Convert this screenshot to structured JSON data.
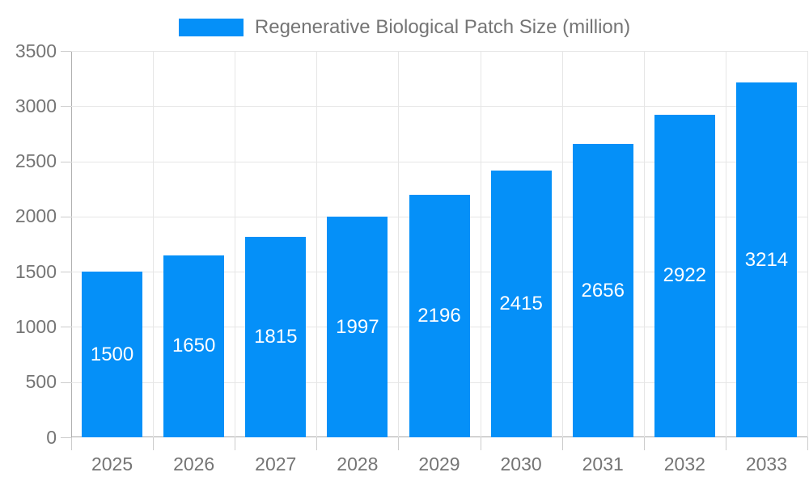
{
  "legend": {
    "label": "Regenerative Biological Patch Size (million)"
  },
  "chart_data": {
    "type": "bar",
    "title": "Regenerative Biological Patch Size (million)",
    "categories": [
      "2025",
      "2026",
      "2027",
      "2028",
      "2029",
      "2030",
      "2031",
      "2032",
      "2033"
    ],
    "values": [
      1500,
      1650,
      1815,
      1997,
      2196,
      2415,
      2656,
      2922,
      3214
    ],
    "xlabel": "",
    "ylabel": "",
    "ylim": [
      0,
      3500
    ],
    "y_ticks": [
      0,
      500,
      1000,
      1500,
      2000,
      2500,
      3000,
      3500
    ],
    "grid": true,
    "legend_position": "top-center",
    "data_labels": "white, centered inside bars",
    "colors": {
      "bar": "#0590f8",
      "gridline": "#e6e6e6",
      "tick": "#cccccc",
      "axis_line": "#b0b0b0",
      "axis_text": "#757575",
      "legend_text": "#757575",
      "bar_label_text": "#ffffff",
      "background": "#ffffff"
    }
  }
}
